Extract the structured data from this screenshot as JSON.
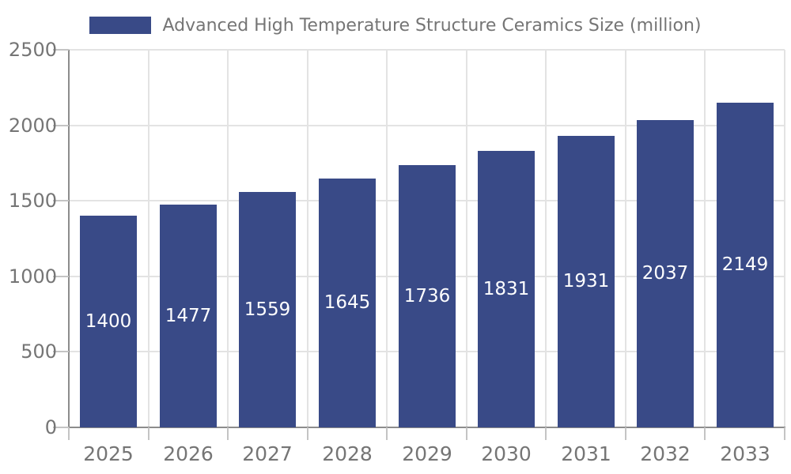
{
  "legend": {
    "label": "Advanced High Temperature Structure Ceramics Size (million)"
  },
  "colors": {
    "bar": "#394A87",
    "grid": "#e3e3e3",
    "axis": "#8c8c8c",
    "tick": "#c4c4c4",
    "tick_label": "#757575",
    "bar_label": "#ffffff",
    "background": "#ffffff"
  },
  "chart_data": {
    "type": "bar",
    "title": "Advanced High Temperature Structure Ceramics Size (million)",
    "categories": [
      "2025",
      "2026",
      "2027",
      "2028",
      "2029",
      "2030",
      "2031",
      "2032",
      "2033"
    ],
    "values": [
      1400,
      1477,
      1559,
      1645,
      1736,
      1831,
      1931,
      2037,
      2149
    ],
    "xlabel": "",
    "ylabel": "",
    "ylim": [
      0,
      2500
    ],
    "y_ticks": [
      0,
      500,
      1000,
      1500,
      2000,
      2500
    ],
    "grid": true,
    "legend_position": "top",
    "bar_labels_inside": true
  }
}
